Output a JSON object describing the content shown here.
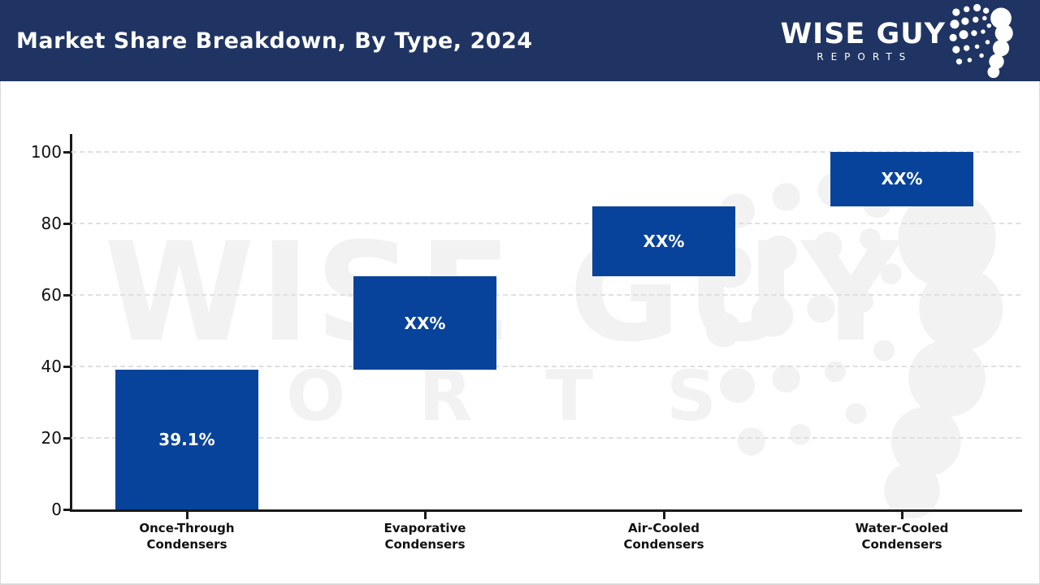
{
  "header": {
    "title": "Market Share Breakdown, By Type, 2024",
    "logo": {
      "line1": "WISE GUY",
      "line2": "REPORTS"
    }
  },
  "watermark": {
    "line1": "WISE GUY",
    "line2": "R O R T S"
  },
  "colors": {
    "header_bg": "#1f3462",
    "bar": "#08439b",
    "axis": "#1a1a1a",
    "gridline": "#e0e0e0",
    "watermark": "#f2f2f2",
    "frame_border": "#d9d9d9",
    "bar_label": "#ffffff"
  },
  "chart_data": {
    "type": "bar",
    "subtype": "waterfall",
    "title": "Market Share Breakdown, By Type, 2024",
    "xlabel": "",
    "ylabel": "",
    "ylim": [
      0,
      105
    ],
    "yticks": [
      0,
      20,
      40,
      60,
      80,
      100
    ],
    "grid": "horizontal-dashed",
    "legend": "none",
    "categories": [
      [
        "Once-Through",
        "Condensers"
      ],
      [
        "Evaporative",
        "Condensers"
      ],
      [
        "Air-Cooled",
        "Condensers"
      ],
      [
        "Water-Cooled",
        "Condensers"
      ]
    ],
    "segments": [
      {
        "start": 0,
        "end": 39.1,
        "label": "39.1%"
      },
      {
        "start": 39.1,
        "end": 65.2,
        "label": "XX%"
      },
      {
        "start": 65.2,
        "end": 84.8,
        "label": "XX%"
      },
      {
        "start": 84.8,
        "end": 100,
        "label": "XX%"
      }
    ]
  }
}
